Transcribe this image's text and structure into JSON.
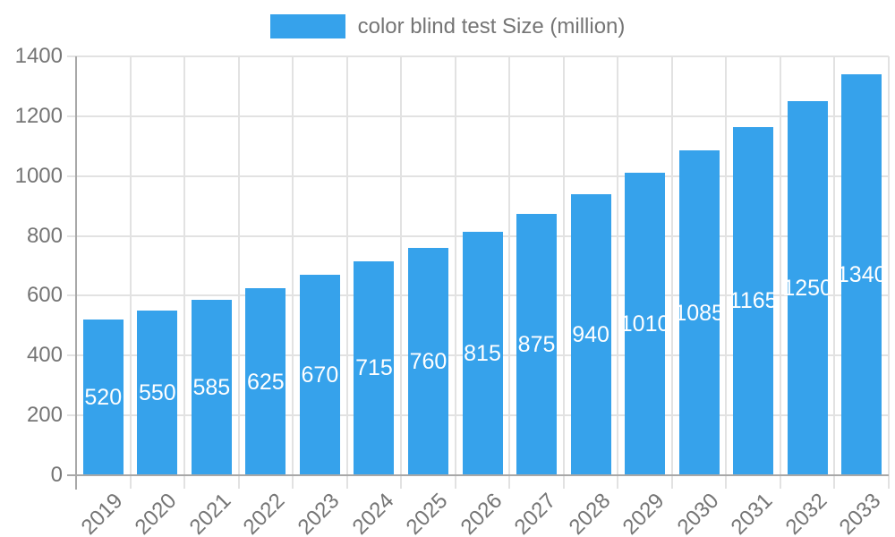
{
  "legend": {
    "label": "color blind test Size (million)",
    "swatch_color": "#36A2EB"
  },
  "chart_data": {
    "type": "bar",
    "title": "color blind test Size (million)",
    "series": [
      {
        "name": "color blind test Size (million)",
        "values": [
          520,
          550,
          585,
          625,
          670,
          715,
          760,
          815,
          875,
          940,
          1010,
          1085,
          1165,
          1250,
          1340
        ]
      }
    ],
    "categories": [
      "2019",
      "2020",
      "2021",
      "2022",
      "2023",
      "2024",
      "2025",
      "2026",
      "2027",
      "2028",
      "2029",
      "2030",
      "2031",
      "2032",
      "2033"
    ],
    "xlabel": "",
    "ylabel": "",
    "ylim": [
      0,
      1400
    ],
    "yticks": [
      0,
      200,
      400,
      600,
      800,
      1000,
      1200,
      1400
    ],
    "grid": true,
    "legend_position": "top",
    "x_label_rotation_deg": -45,
    "value_labels_shown": true,
    "colors": {
      "bar": "#36A2EB",
      "value_label": "#ffffff",
      "axis_text": "#757575",
      "gridline": "#e2e2e2",
      "axis_line": "#a8a8a8",
      "background": "#ffffff"
    }
  }
}
